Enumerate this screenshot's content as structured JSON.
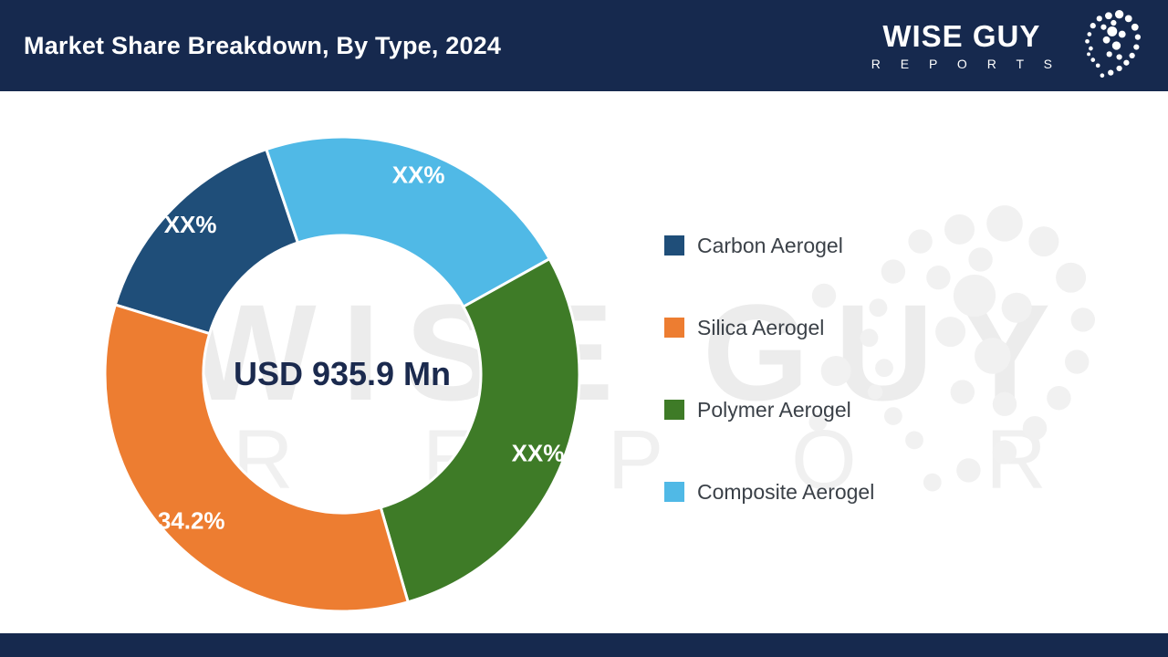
{
  "header": {
    "title": "Market Share Breakdown, By Type, 2024",
    "brand": {
      "line1": "WISE GUY",
      "line2": "R E P O R T S"
    }
  },
  "watermark": {
    "line1": "WISE GUY",
    "line2": "R E P O R T S"
  },
  "chart_data": {
    "type": "pie",
    "subtype": "donut",
    "title": "Market Share Breakdown, By Type, 2024",
    "center_label": "USD 935.9 Mn",
    "units": "percent",
    "start_angle_deg_cw_from_top": 287,
    "segments": [
      {
        "name": "Carbon Aerogel",
        "value": 15.1,
        "display_label": "XX%",
        "color": "#1f4e79"
      },
      {
        "name": "Composite Aerogel",
        "value": 22.1,
        "display_label": "XX%",
        "color": "#50b9e6"
      },
      {
        "name": "Polymer Aerogel",
        "value": 28.6,
        "display_label": "XX%",
        "color": "#3e7b27"
      },
      {
        "name": "Silica Aerogel",
        "value": 34.2,
        "display_label": "34.2%",
        "color": "#ed7d31"
      }
    ],
    "legend": [
      {
        "label": "Carbon Aerogel",
        "color": "#1f4e79"
      },
      {
        "label": "Silica Aerogel",
        "color": "#ed7d31"
      },
      {
        "label": "Polymer Aerogel",
        "color": "#3e7b27"
      },
      {
        "label": "Composite Aerogel",
        "color": "#50b9e6"
      }
    ],
    "legend_position": "right",
    "colors": {
      "header_bar": "#16294e",
      "center_text": "#1b2a4e",
      "segment_label_text": "#ffffff"
    }
  }
}
